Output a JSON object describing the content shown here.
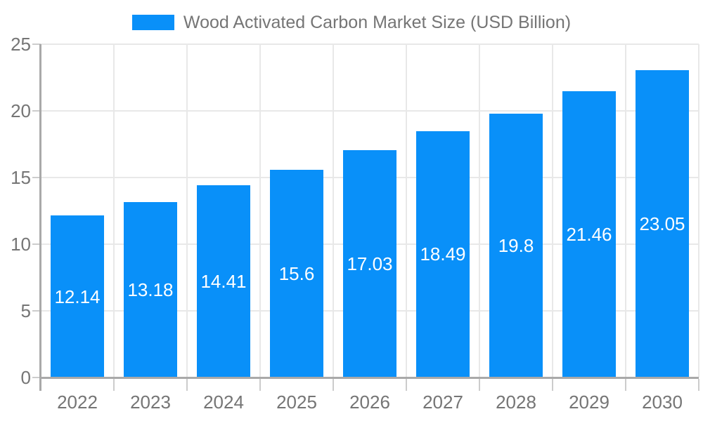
{
  "chart_data": {
    "type": "bar",
    "title": "Wood Activated Carbon Market Size (USD Billion)",
    "categories": [
      "2022",
      "2023",
      "2024",
      "2025",
      "2026",
      "2027",
      "2028",
      "2029",
      "2030"
    ],
    "values": [
      12.14,
      13.18,
      14.41,
      15.6,
      17.03,
      18.49,
      19.8,
      21.46,
      23.05
    ],
    "value_labels": [
      "12.14",
      "13.18",
      "14.41",
      "15.6",
      "17.03",
      "18.49",
      "19.8",
      "21.46",
      "23.05"
    ],
    "xlabel": "",
    "ylabel": "",
    "ylim": [
      0,
      25
    ],
    "yticks": [
      0,
      5,
      10,
      15,
      20,
      25
    ],
    "ytick_labels": [
      "0",
      "5",
      "10",
      "15",
      "20",
      "25"
    ],
    "grid": true,
    "legend_position": "top-center",
    "colors": {
      "bar": "#0990f9",
      "bar_label_text": "#ffffff",
      "grid_line": "#e8e8e8",
      "axis_line": "#a9a9a9",
      "tick_mark": "#cccccc",
      "tick_text": "#757575"
    }
  }
}
